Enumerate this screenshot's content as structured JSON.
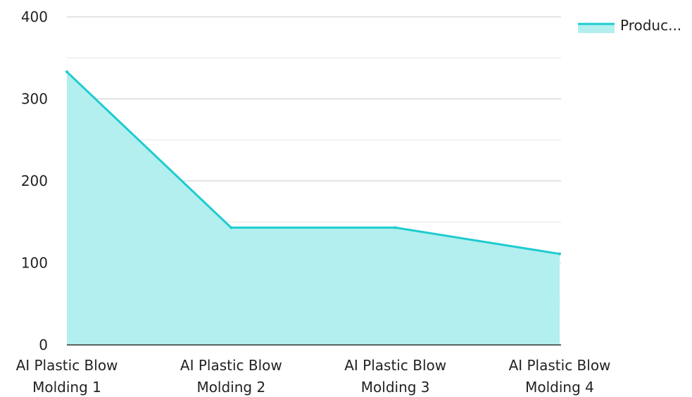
{
  "chart_data": {
    "type": "area",
    "categories": [
      [
        "AI Plastic Blow",
        "Molding 1"
      ],
      [
        "AI Plastic Blow",
        "Molding 2"
      ],
      [
        "AI Plastic Blow",
        "Molding 3"
      ],
      [
        "AI Plastic Blow",
        "Molding 4"
      ]
    ],
    "series": [
      {
        "name": "Produc...",
        "values": [
          333,
          143,
          143,
          111
        ]
      }
    ],
    "ylim": [
      0,
      400
    ],
    "yticks": [
      0,
      100,
      200,
      300,
      400
    ],
    "grid": true,
    "legend_position": "top-right",
    "colors": {
      "line": "#1ecbd0",
      "fill": "#b2efee",
      "grid_major": "#c8c8c8",
      "grid_minor": "#e6e6e6",
      "axis": "#333333"
    }
  }
}
